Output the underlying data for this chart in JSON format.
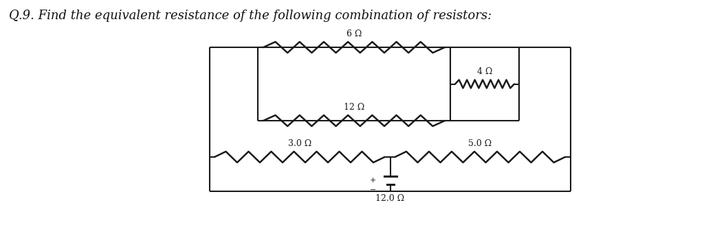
{
  "title": "Q.9. Find the equivalent resistance of the following combination of resistors:",
  "title_fontsize": 13,
  "bg_color": "#ffffff",
  "line_color": "#1a1a1a",
  "label_6": "6 Ω",
  "label_12": "12 Ω",
  "label_4": "4 Ω",
  "label_30": "3.0 Ω",
  "label_50": "5.0 Ω",
  "label_battery": "12.0 Ω",
  "lw": 1.5,
  "res_lw": 1.8,
  "n_zigzag": 7
}
